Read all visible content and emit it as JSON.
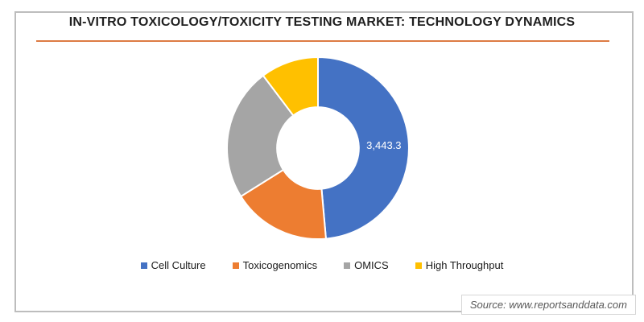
{
  "page": {
    "title": "IN-VITRO TOXICOLOGY/TOXICITY TESTING MARKET: TECHNOLOGY DYNAMICS",
    "source_text": "Source: www.reportsanddata.com",
    "accent_rule_color": "#DD7B44",
    "frame_border_color": "#BDBDBD"
  },
  "chart_data": {
    "type": "pie",
    "subtype": "donut",
    "title": "IN-VITRO TOXICOLOGY/TOXICITY TESTING MARKET: TECHNOLOGY DYNAMICS",
    "start_angle_deg": 0,
    "direction": "clockwise",
    "inner_radius_ratio": 0.45,
    "legend_position": "bottom",
    "data_label_color": "#FFFFFF",
    "segments": [
      {
        "label": "Cell Culture",
        "color": "#4472C4",
        "percent_est": 48.6,
        "data_label": "3,443.3"
      },
      {
        "label": "Toxicogenomics",
        "color": "#ED7D31",
        "percent_est": 17.5,
        "data_label": ""
      },
      {
        "label": "OMICS",
        "color": "#A5A5A5",
        "percent_est": 23.6,
        "data_label": ""
      },
      {
        "label": "High Throughput",
        "color": "#FFC000",
        "percent_est": 10.3,
        "data_label": ""
      }
    ]
  }
}
